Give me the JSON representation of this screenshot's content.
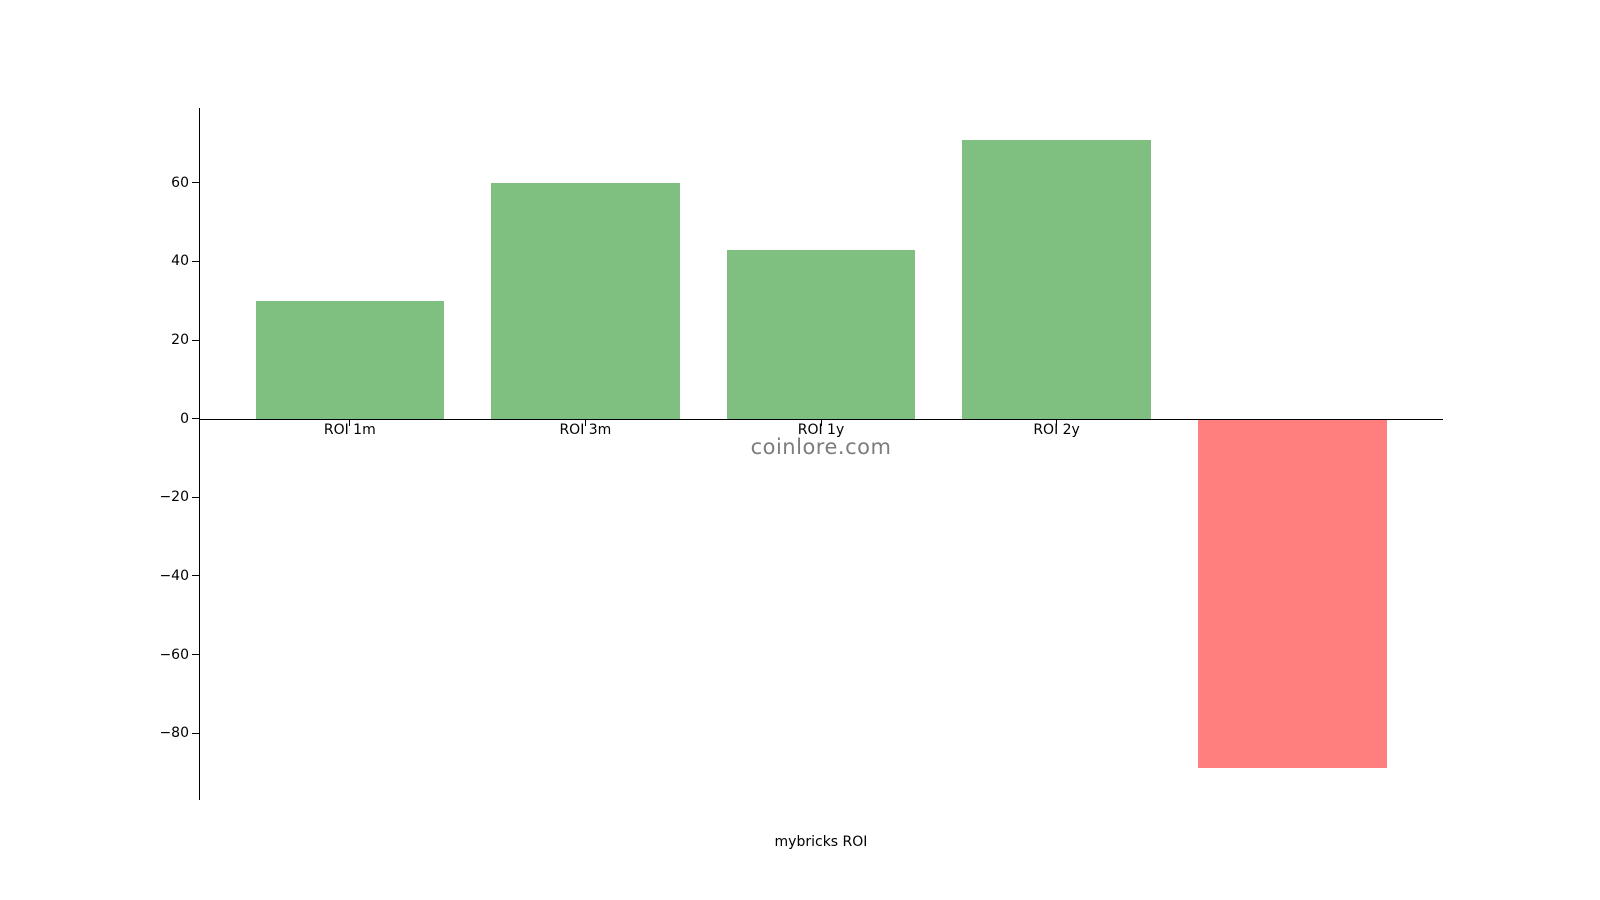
{
  "page": {
    "background_color": "#ffffff"
  },
  "chart_data": {
    "type": "bar",
    "categories": [
      "ROI 1m",
      "ROI 3m",
      "ROI 1y",
      "ROI 2y",
      ""
    ],
    "values": [
      30,
      60,
      43,
      71,
      -89
    ],
    "title": "",
    "xlabel": "mybricks ROI",
    "ylabel": "",
    "yticks": [
      60,
      40,
      20,
      0,
      -20,
      -40,
      -60,
      -80
    ],
    "ylim": [
      -97,
      79
    ],
    "xlim": [
      -0.64,
      4.64
    ],
    "bar_width": 0.8,
    "grid": false,
    "legend": null,
    "positive_color": "#7fbf7f",
    "negative_color": "#ff7f7f",
    "axis_color": "#000000",
    "tick_label_color": "#000000",
    "watermark": "coinlore.com",
    "watermark_color": "#7d7d7d"
  }
}
